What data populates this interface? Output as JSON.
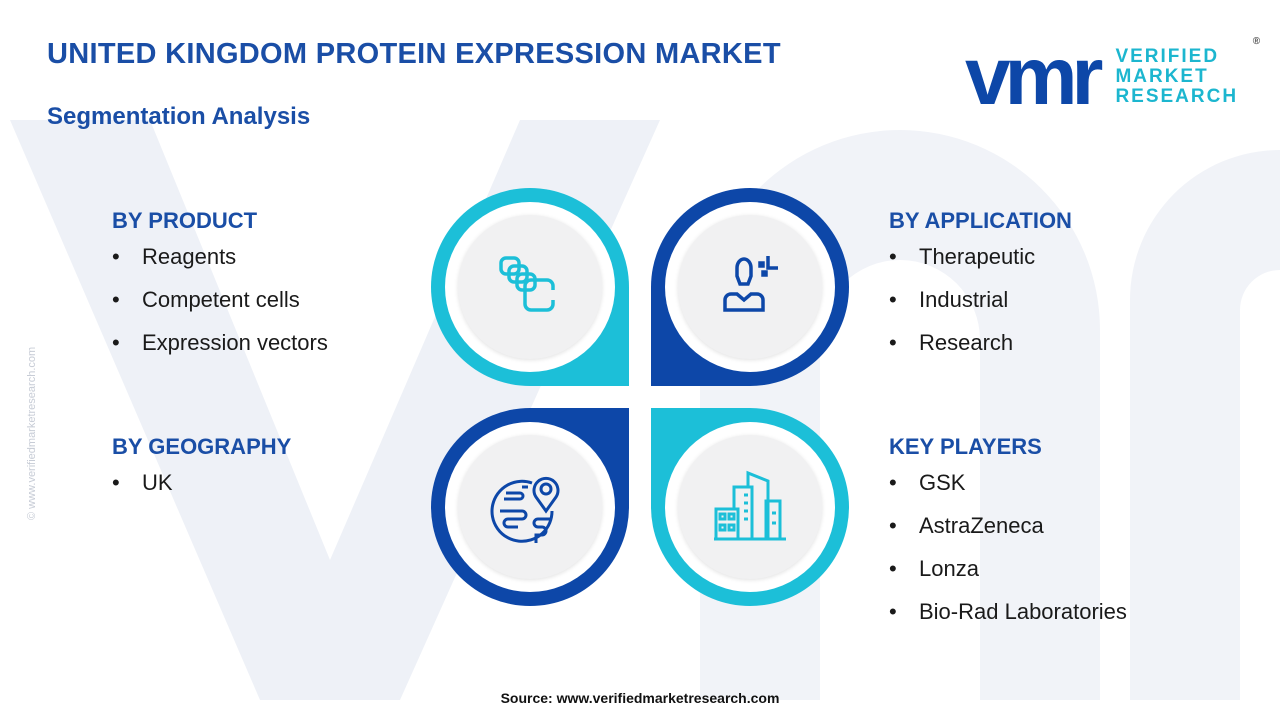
{
  "title": "UNITED KINGDOM PROTEIN EXPRESSION MARKET",
  "subtitle": "Segmentation Analysis",
  "logo": {
    "mark": "vmr",
    "line1": "VERIFIED",
    "line2": "MARKET",
    "line3": "RESEARCH",
    "reg": "®"
  },
  "side_watermark": "© www.verifiedmarketresearch.com",
  "colors": {
    "dark_blue": "#0d47a8",
    "cyan": "#1cbfd8",
    "heading": "#1a4ea6"
  },
  "sections": {
    "product": {
      "heading": "BY PRODUCT",
      "items": [
        "Reagents",
        "Competent cells",
        "Expression vectors"
      ],
      "icon": "cells-icon"
    },
    "application": {
      "heading": "BY APPLICATION",
      "items": [
        "Therapeutic",
        "Industrial",
        "Research"
      ],
      "icon": "person-icon"
    },
    "geography": {
      "heading": "BY GEOGRAPHY",
      "items": [
        "UK"
      ],
      "icon": "globe-pin-icon"
    },
    "players": {
      "heading": "KEY PLAYERS",
      "items": [
        "GSK",
        "AstraZeneca",
        "Lonza",
        "Bio-Rad Laboratories"
      ],
      "icon": "buildings-icon"
    }
  },
  "bullet": "•",
  "source": "Source: www.verifiedmarketresearch.com"
}
